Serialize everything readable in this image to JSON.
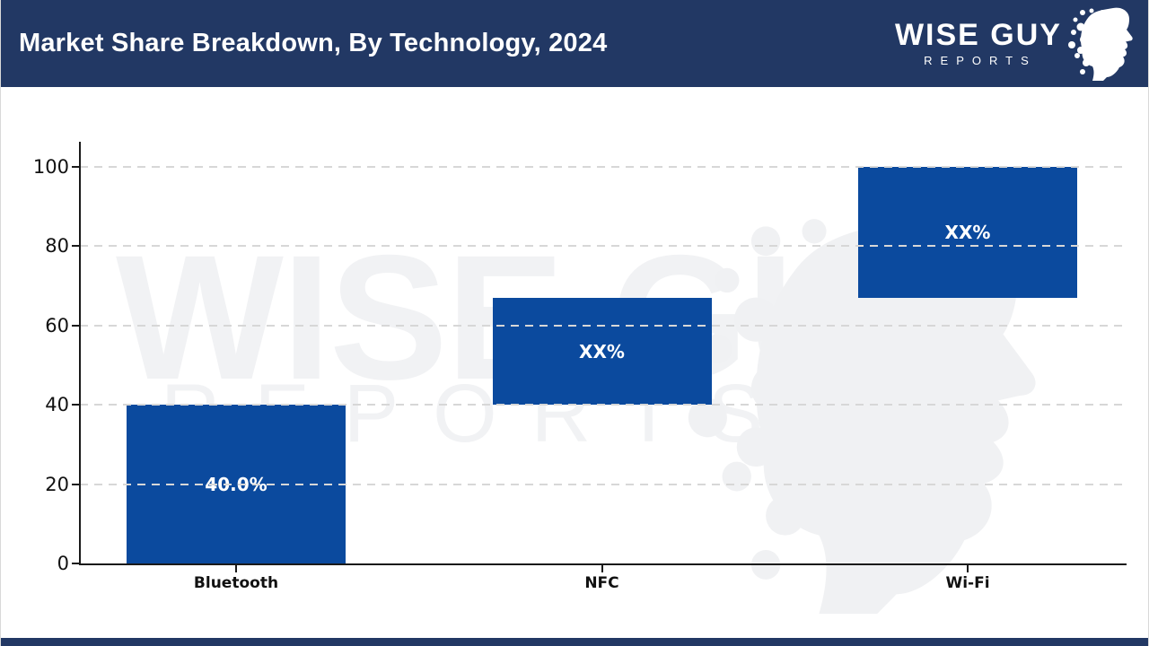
{
  "header": {
    "title": "Market Share Breakdown, By Technology, 2024",
    "logo_line1": "WISE GUY",
    "logo_line2": "REPORTS",
    "bg_color": "#223864"
  },
  "watermark": {
    "line1": "WISE GUY",
    "line2": "REPORTS"
  },
  "footer": {
    "bg_color": "#223864"
  },
  "chart_data": {
    "type": "bar",
    "subtype": "waterfall",
    "title": "Market Share Breakdown, By Technology, 2024",
    "categories": [
      "Bluetooth",
      "NFC",
      "Wi-Fi"
    ],
    "series": [
      {
        "name": "Market Share (%)",
        "segments": [
          {
            "category": "Bluetooth",
            "start": 0,
            "end": 40,
            "value": 40,
            "label": "40.0%"
          },
          {
            "category": "NFC",
            "start": 40,
            "end": 67,
            "value": 27,
            "label": "XX%"
          },
          {
            "category": "Wi-Fi",
            "start": 67,
            "end": 100,
            "value": 33,
            "label": "XX%"
          }
        ]
      }
    ],
    "xlabel": "",
    "ylabel": "",
    "ylim": [
      0,
      100
    ],
    "yticks": [
      0,
      20,
      40,
      60,
      80,
      100
    ],
    "grid": "horizontal-dashed",
    "legend": "none",
    "bar_color": "#0b4a9e",
    "label_color": "#ffffff"
  }
}
